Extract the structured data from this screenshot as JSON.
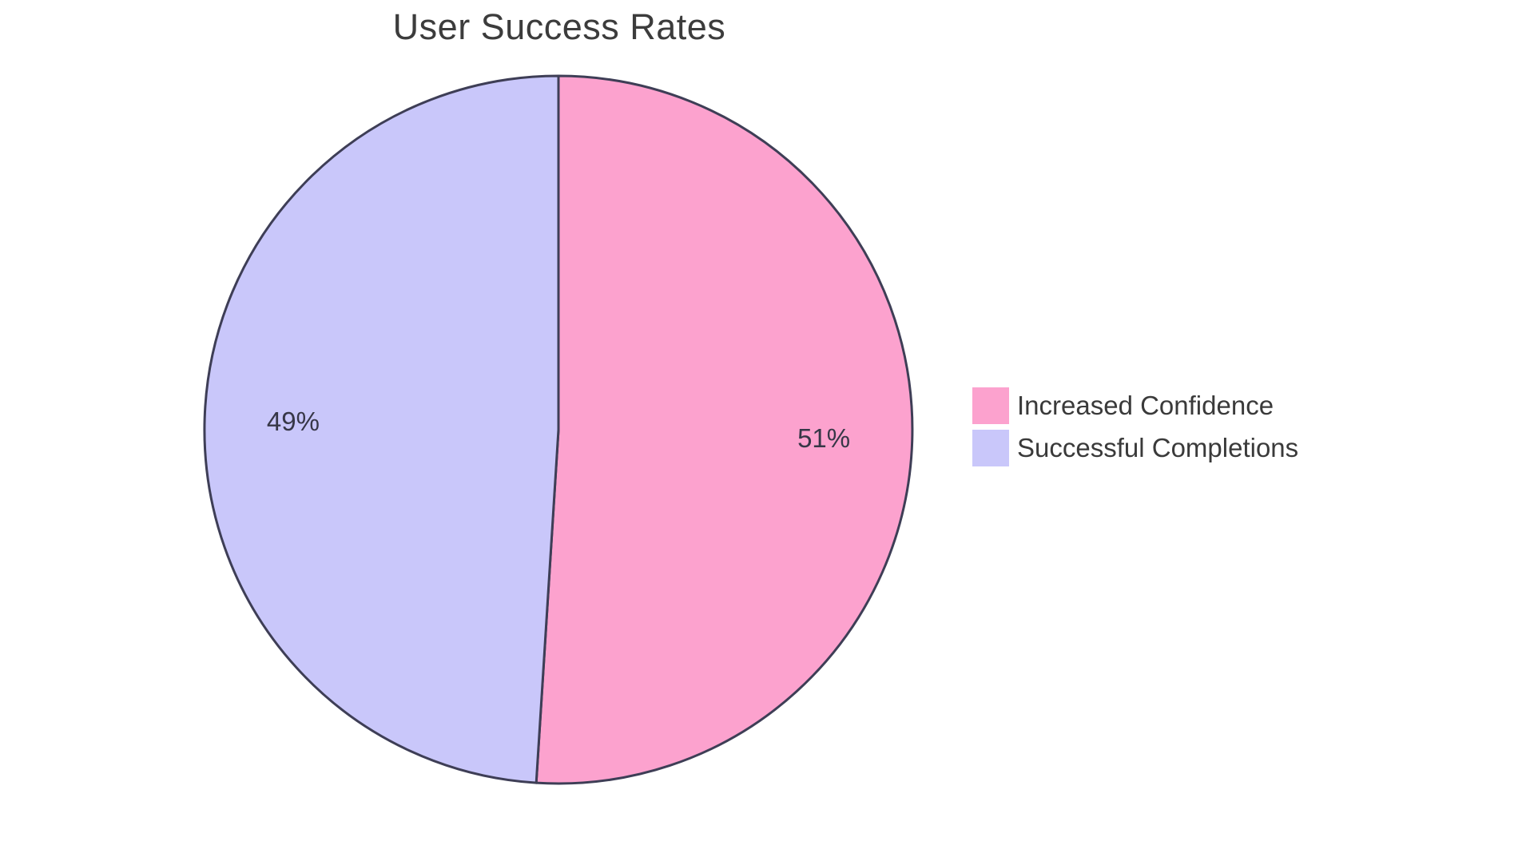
{
  "chart_data": {
    "type": "pie",
    "title": "User Success Rates",
    "slices": [
      {
        "id": "increased-confidence",
        "label": "Increased Confidence",
        "value": 51,
        "percent_label": "51%",
        "color": "#FCA2CE"
      },
      {
        "id": "successful-completions",
        "label": "Successful Completions",
        "value": 49,
        "percent_label": "49%",
        "color": "#C9C7FA"
      }
    ],
    "legend_position": "right",
    "start_position": "top",
    "direction": "clockwise",
    "style": {
      "slice_border_color": "#3E3E56",
      "title_color": "#3C3C3C",
      "slice_label_color": "#373747",
      "legend_text_color": "#3A3A3A",
      "background": "#FFFFFF"
    }
  }
}
